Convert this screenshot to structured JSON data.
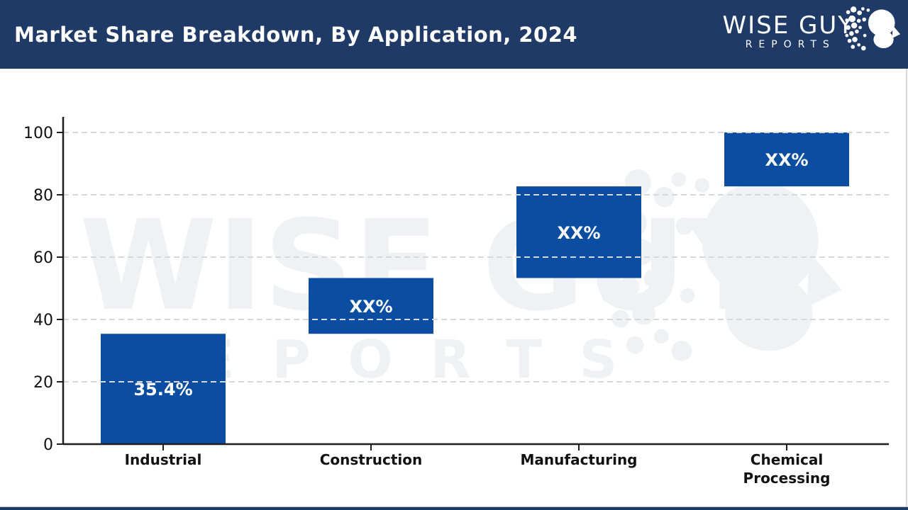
{
  "header": {
    "title": "Market Share Breakdown, By Application, 2024",
    "logo": {
      "line1": "WISE GUY",
      "line2": "REPORTS"
    }
  },
  "watermark": {
    "line1": "WISE GUY",
    "line2": "REPORTS"
  },
  "colors": {
    "header_bg": "#203a68",
    "bar": "#0b4da1",
    "bar_label": "#ffffff",
    "grid": "#d8d8d8",
    "axis": "#1f1f1f",
    "watermark": "#f0f1f4",
    "footer_bar": "#203a68"
  },
  "chart_data": {
    "type": "bar",
    "subtype": "waterfall",
    "title": "Market Share Breakdown, By Application, 2024",
    "categories": [
      "Industrial",
      "Construction",
      "Manufacturing",
      "Chemical Processing"
    ],
    "segments": [
      {
        "category": "Industrial",
        "start": 0,
        "end": 35.4,
        "label": "35.4%"
      },
      {
        "category": "Construction",
        "start": 35.4,
        "end": 53.3,
        "label": "XX%"
      },
      {
        "category": "Manufacturing",
        "start": 53.3,
        "end": 82.7,
        "label": "XX%"
      },
      {
        "category": "Chemical Processing",
        "start": 82.7,
        "end": 100,
        "label": "XX%"
      }
    ],
    "y_ticks": [
      0,
      20,
      40,
      60,
      80,
      100
    ],
    "ylim": [
      0,
      105
    ],
    "xlabel": "",
    "ylabel": "",
    "grid": "horizontal-dashed",
    "grid_above_bars": true,
    "legend": "none",
    "bar_color": "#0b4da1"
  }
}
